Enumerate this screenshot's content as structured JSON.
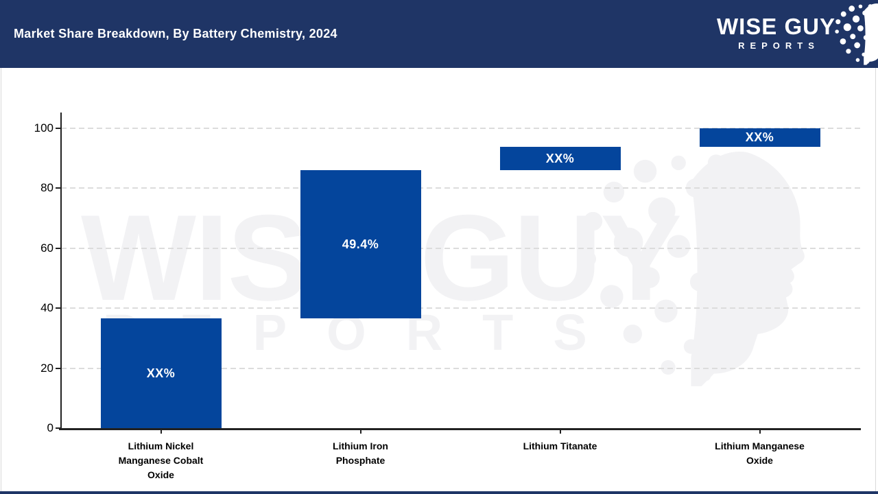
{
  "header": {
    "title": "Market Share Breakdown, By Battery Chemistry, 2024",
    "logo": {
      "wordmark": "WISE GUY",
      "subtext": "REPORTS"
    }
  },
  "watermark": {
    "line1": "WISE GUY",
    "line2": "REPORTS"
  },
  "chart_data": {
    "type": "bar",
    "subtype": "waterfall",
    "title": "Market Share Breakdown, By Battery Chemistry, 2024",
    "categories": [
      {
        "name": "Lithium Nickel Manganese Cobalt Oxide",
        "lines": [
          "Lithium Nickel",
          "Manganese Cobalt",
          "Oxide"
        ]
      },
      {
        "name": "Lithium Iron Phosphate",
        "lines": [
          "Lithium Iron",
          "Phosphate"
        ]
      },
      {
        "name": "Lithium Titanate",
        "lines": [
          "Lithium Titanate"
        ]
      },
      {
        "name": "Lithium Manganese Oxide",
        "lines": [
          "Lithium Manganese",
          "Oxide"
        ]
      }
    ],
    "series": [
      {
        "name": "Market share (%)",
        "bar_starts": [
          0,
          36.6,
          86.0,
          93.8
        ],
        "values": [
          36.6,
          49.4,
          7.8,
          6.2
        ],
        "bar_labels": [
          "XX%",
          "49.4%",
          "XX%",
          "XX%"
        ]
      }
    ],
    "xlabel": "",
    "ylabel": "",
    "ylim": [
      0,
      105
    ],
    "yticks": [
      0,
      20,
      40,
      60,
      80,
      100
    ],
    "grid": "horizontal-dashed",
    "legend": "none",
    "bar_color": "#04459c",
    "bar_label_color": "#ffffff",
    "axis_color": "#212121",
    "gridline_color": "#dcdcdc",
    "tick_label_color": "#000000",
    "category_label_color": "#000000"
  },
  "colors": {
    "header_bg": "#1f3566",
    "footer_bar": "#1f3566",
    "page_bg": "#ffffff",
    "watermark": "#f2f2f4"
  }
}
